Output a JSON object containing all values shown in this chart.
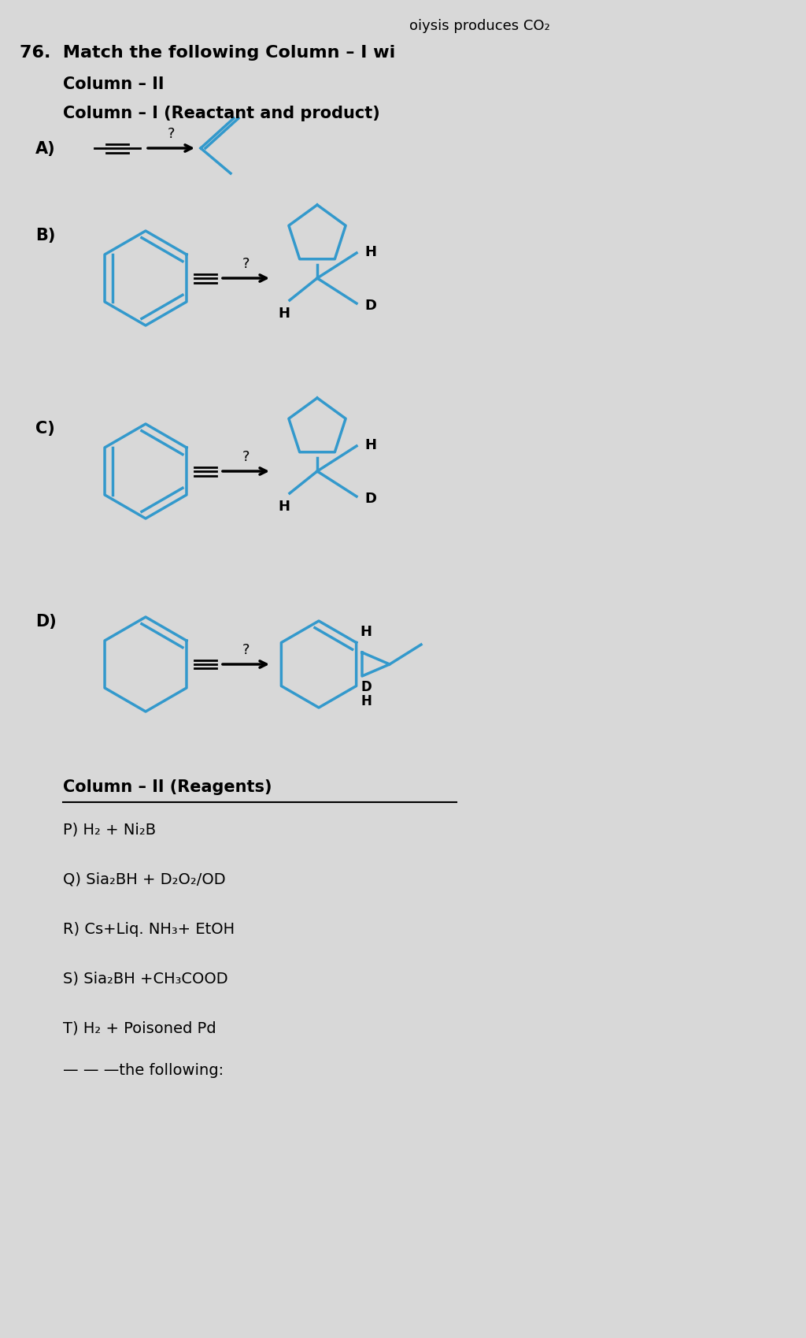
{
  "bg_color": "#d8d8d8",
  "title_text": "76.  Match the following Column – I wi",
  "subtitle1": "Column – II",
  "subtitle2": "Column – I (Reactant and product)",
  "label_A": "A)",
  "label_B": "B)",
  "label_C": "C)",
  "label_D": "D)",
  "col2_title": "Column – II (Reagents)",
  "reagents": [
    "P) H₂ + Ni₂B",
    "Q) Sia₂BH + D₂O₂/OD",
    "R) Cs+Liq. NH₃+ EtOH",
    "S) Sia₂BH +CH₃COOD",
    "T) H₂ + Poisoned Pd"
  ],
  "bottom_text": "— — —the following:",
  "top_text": "oiysis produces CO₂"
}
